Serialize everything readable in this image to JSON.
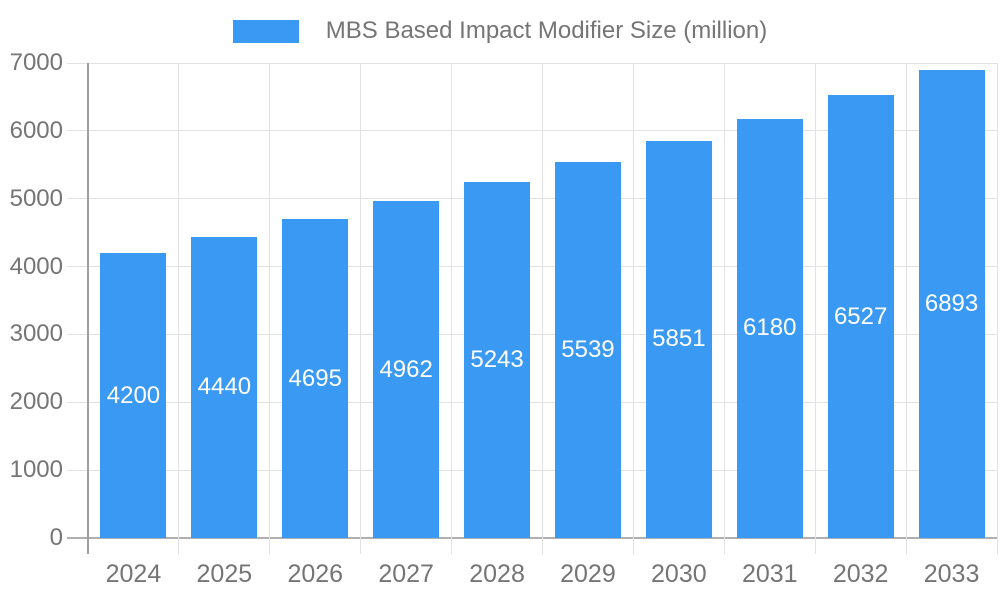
{
  "chart_data": {
    "type": "bar",
    "title": "MBS Based Impact Modifier Size (million)",
    "categories": [
      "2024",
      "2025",
      "2026",
      "2027",
      "2028",
      "2029",
      "2030",
      "2031",
      "2032",
      "2033"
    ],
    "values": [
      4200,
      4440,
      4695,
      4962,
      5243,
      5539,
      5851,
      6180,
      6527,
      6893
    ],
    "xlabel": "",
    "ylabel": "",
    "ylim": [
      0,
      7000
    ],
    "ytick_step": 1000,
    "grid": true,
    "legend_position": "top-center",
    "value_labels": "inside-bar, vertically centered, white",
    "colors": {
      "bar": "#3a99f2",
      "value_label": "#ffffff",
      "axis_text": "#757575",
      "gridline": "#e2e2e2",
      "baseline": "#b0b0b0",
      "axis_line": "#9e9e9e",
      "background": "#ffffff"
    }
  }
}
